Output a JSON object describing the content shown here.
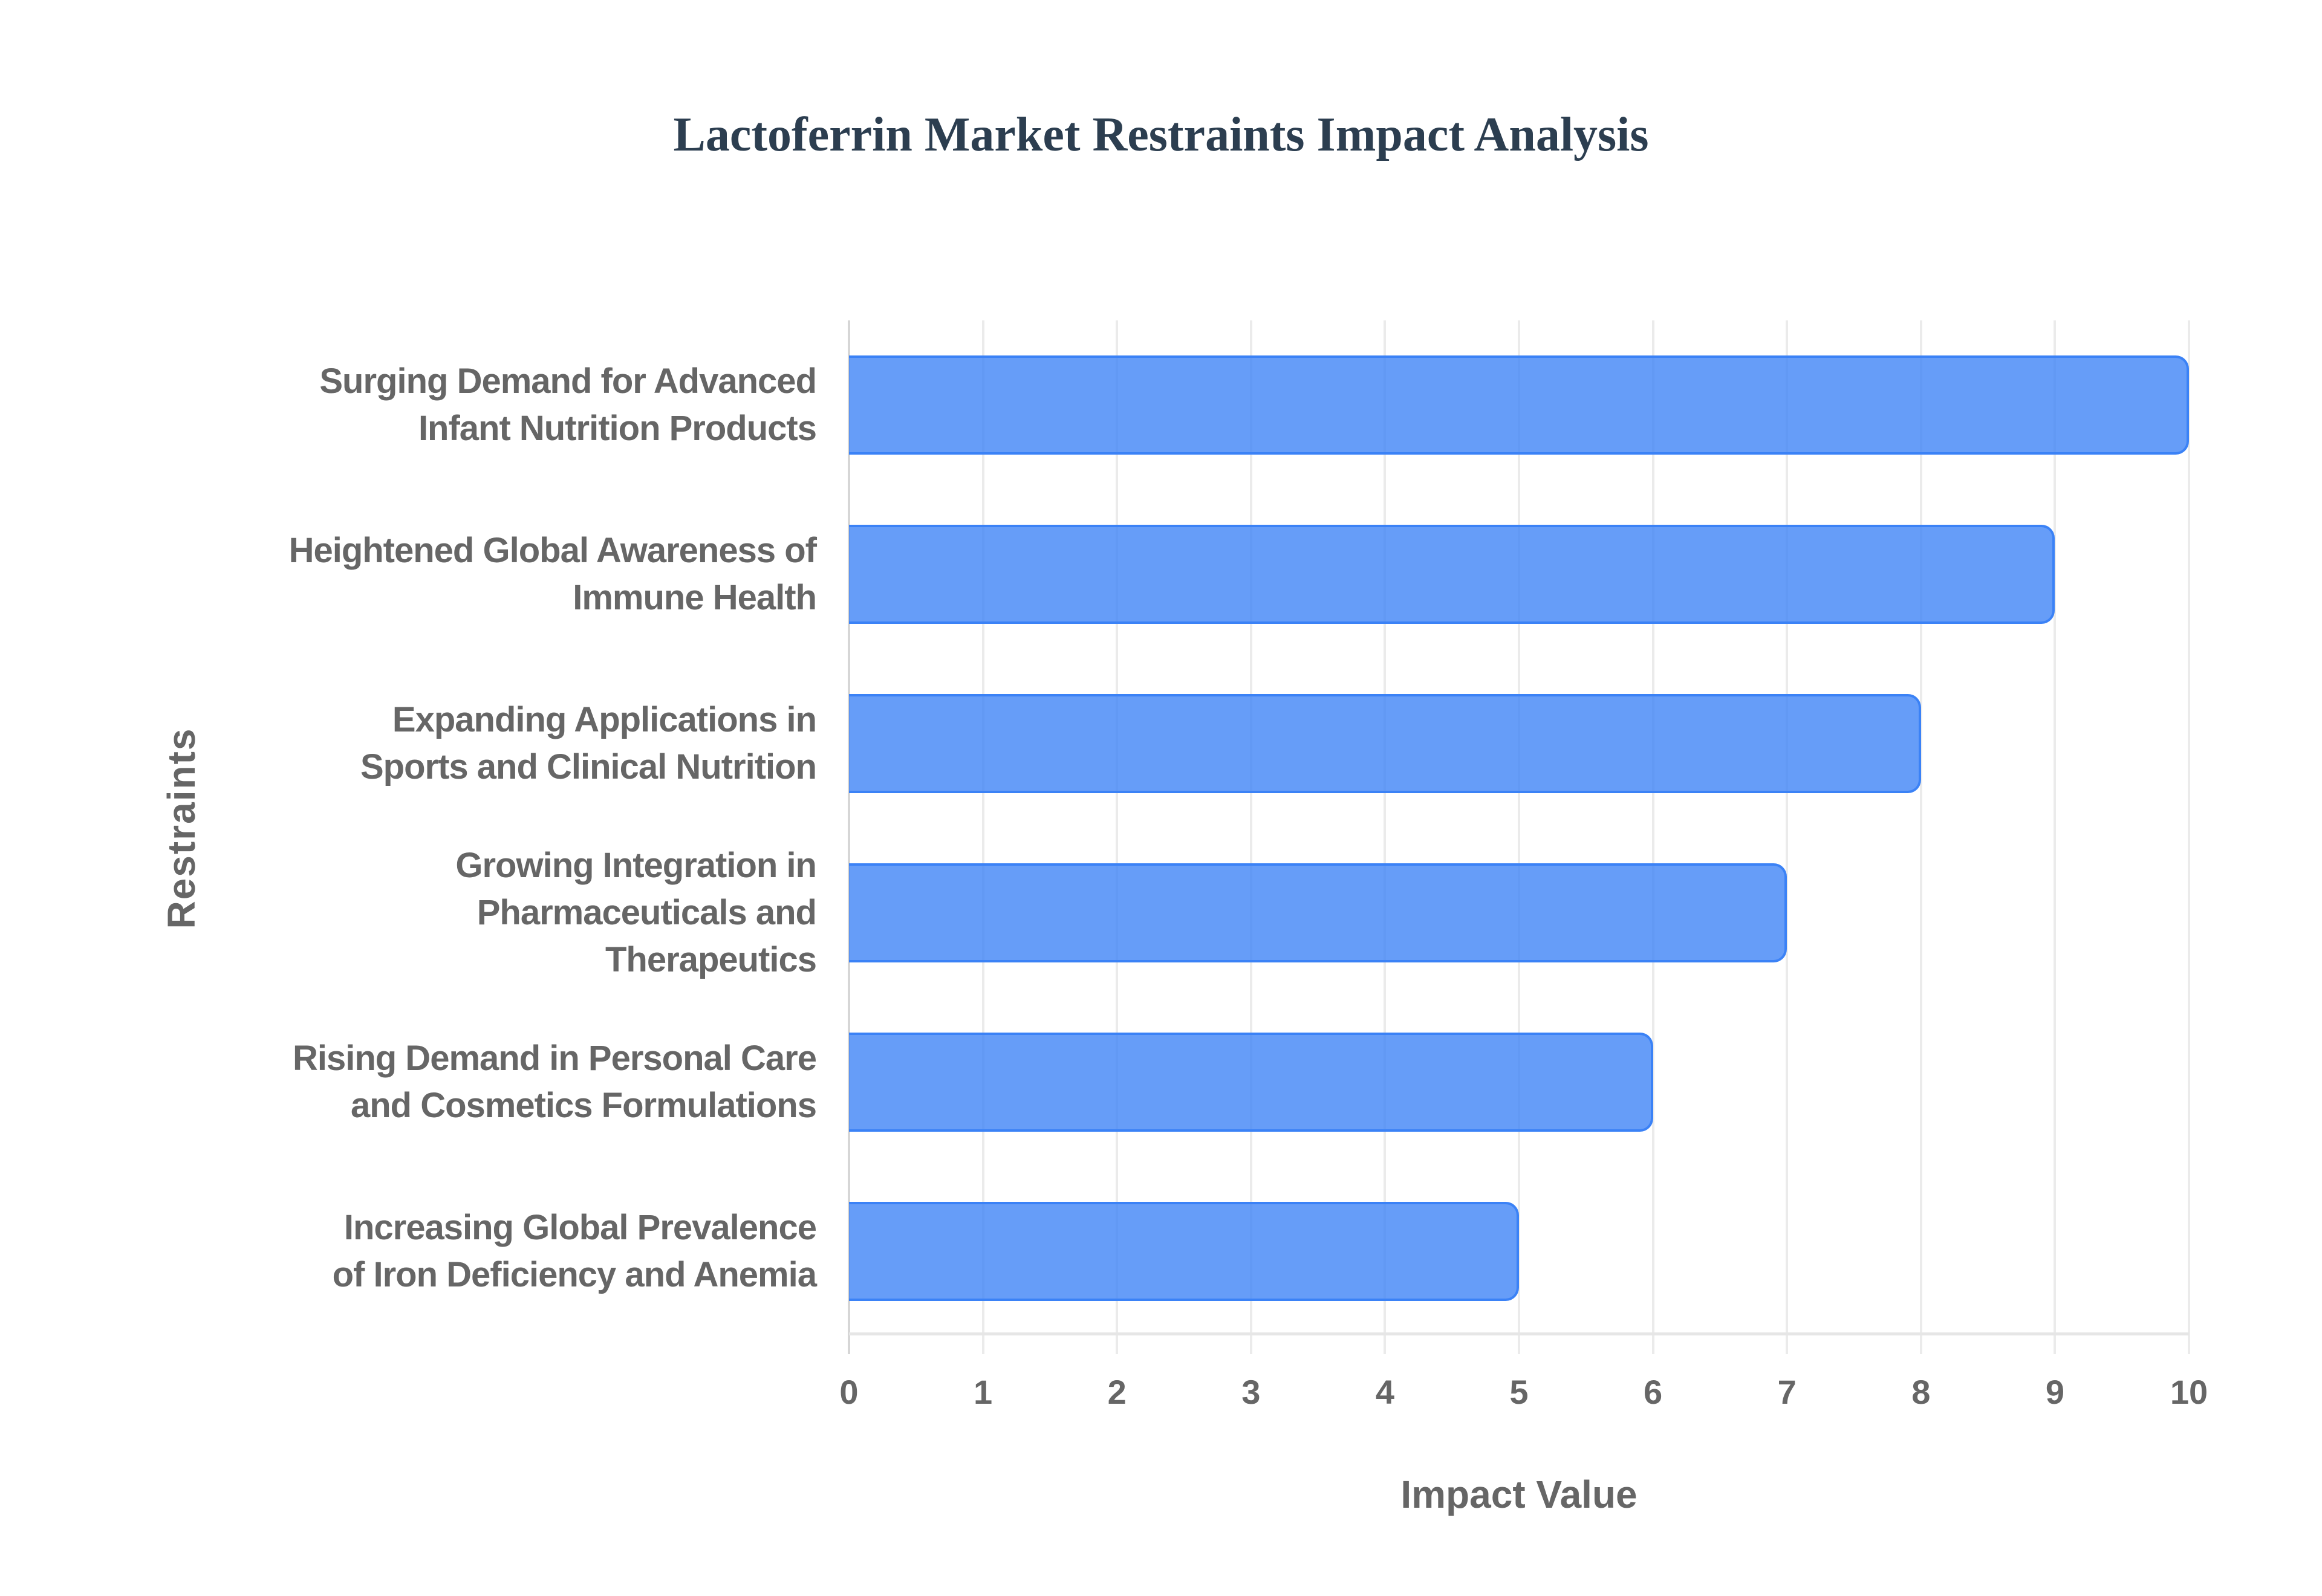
{
  "title": "Lactoferrin Market Restraints Impact Analysis",
  "axes": {
    "x_title": "Impact Value",
    "y_title": "Restraints",
    "x_ticks": [
      "0",
      "1",
      "2",
      "3",
      "4",
      "5",
      "6",
      "7",
      "8",
      "9",
      "10"
    ]
  },
  "colors": {
    "bar_fill": "#3b82f6",
    "bar_fill_opacity": 0.78,
    "bar_border": "#3b82f6",
    "title": "#2c3e50",
    "label": "#666666",
    "grid": "#ebebeb"
  },
  "bars": [
    {
      "lines": [
        "Surging Demand for Advanced",
        "Infant Nutrition Products"
      ],
      "value": 10
    },
    {
      "lines": [
        "Heightened Global Awareness of",
        "Immune Health"
      ],
      "value": 9
    },
    {
      "lines": [
        "Expanding Applications in",
        "Sports and Clinical Nutrition"
      ],
      "value": 8
    },
    {
      "lines": [
        "Growing Integration in",
        "Pharmaceuticals and",
        "Therapeutics"
      ],
      "value": 7
    },
    {
      "lines": [
        "Rising Demand in Personal Care",
        "and Cosmetics Formulations"
      ],
      "value": 6
    },
    {
      "lines": [
        "Increasing Global Prevalence",
        "of Iron Deficiency and Anemia"
      ],
      "value": 5
    }
  ],
  "chart_data": {
    "type": "bar",
    "orientation": "horizontal",
    "title": "Lactoferrin Market Restraints Impact Analysis",
    "xlabel": "Impact Value",
    "ylabel": "Restraints",
    "xlim": [
      0,
      10
    ],
    "grid": true,
    "legend": null,
    "categories": [
      "Surging Demand for Advanced Infant Nutrition Products",
      "Heightened Global Awareness of Immune Health",
      "Expanding Applications in Sports and Clinical Nutrition",
      "Growing Integration in Pharmaceuticals and Therapeutics",
      "Rising Demand in Personal Care and Cosmetics Formulations",
      "Increasing Global Prevalence of Iron Deficiency and Anemia"
    ],
    "values": [
      10,
      9,
      8,
      7,
      6,
      5
    ]
  }
}
